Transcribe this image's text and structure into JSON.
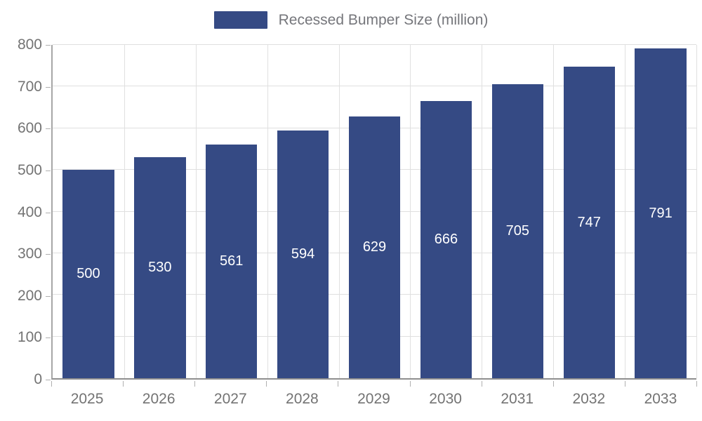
{
  "legend": {
    "label": "Recessed Bumper Size (million)"
  },
  "colors": {
    "bar": "#354a84",
    "bar_label_text": "#ffffff",
    "axis_text": "#737373",
    "legend_text": "#75767b",
    "grid": "#e0e0e0",
    "axis_line": "#8f8f8f",
    "background": "#ffffff"
  },
  "chart_data": {
    "type": "bar",
    "title": "Recessed Bumper Size (million)",
    "categories": [
      "2025",
      "2026",
      "2027",
      "2028",
      "2029",
      "2030",
      "2031",
      "2032",
      "2033"
    ],
    "values": [
      500,
      530,
      561,
      594,
      629,
      666,
      705,
      747,
      791
    ],
    "xlabel": "",
    "ylabel": "",
    "ylim": [
      0,
      800
    ],
    "yticks": [
      0,
      100,
      200,
      300,
      400,
      500,
      600,
      700,
      800
    ],
    "grid": true,
    "legend_position": "top",
    "value_labels": "centered-inside-bars"
  }
}
